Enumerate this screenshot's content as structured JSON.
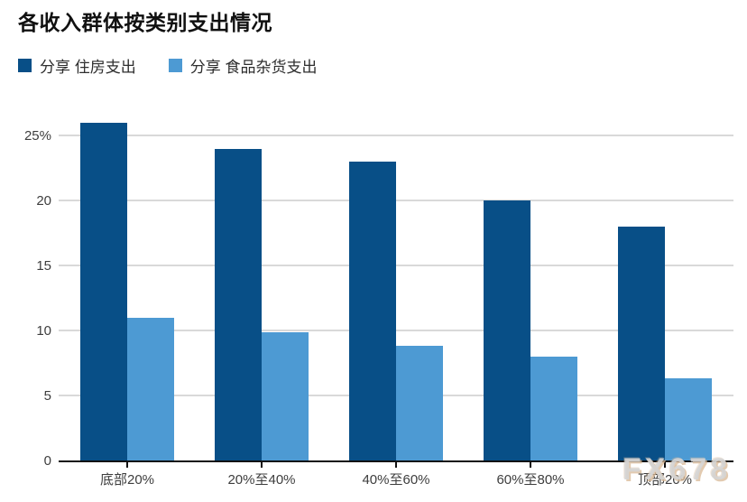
{
  "title": "各收入群体按类别支出情况",
  "legend": [
    {
      "label": "分享 住房支出",
      "color": "#084f87"
    },
    {
      "label": "分享 食品杂货支出",
      "color": "#4d9ad3"
    }
  ],
  "watermark": "FX678",
  "chart_data": {
    "type": "bar",
    "categories": [
      "底部20%",
      "20%至40%",
      "40%至60%",
      "60%至80%",
      "顶部20%"
    ],
    "series": [
      {
        "name": "分享 住房支出",
        "color": "#084f87",
        "values": [
          26,
          24,
          23,
          20,
          18
        ]
      },
      {
        "name": "分享 食品杂货支出",
        "color": "#4d9ad3",
        "values": [
          11,
          9.9,
          8.8,
          8,
          6.3
        ]
      }
    ],
    "title": "各收入群体按类别支出情况",
    "xlabel": "",
    "ylabel": "",
    "yticks": [
      0,
      5,
      10,
      15,
      20,
      25
    ],
    "ytick_labels": [
      "0",
      "5",
      "10",
      "15",
      "20",
      "25%"
    ],
    "ylim": [
      0,
      26.4
    ],
    "grid": "horizontal",
    "legend_position": "top-left"
  }
}
